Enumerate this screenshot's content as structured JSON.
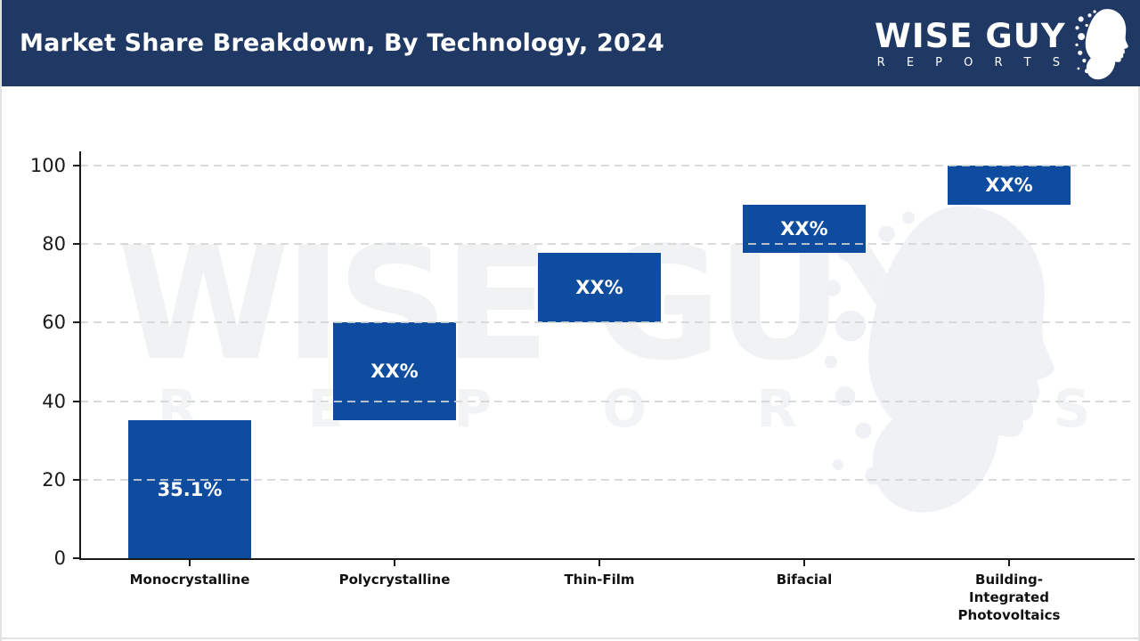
{
  "header": {
    "title": "Market Share Breakdown, By Technology, 2024",
    "background_color": "#1f3864",
    "logo": {
      "line1": "WISE GUY",
      "line2": "R E P O R T S"
    }
  },
  "watermark": {
    "line1": "WISE GUY",
    "line2": "R E P O R T S"
  },
  "chart_data": {
    "type": "bar",
    "subtype": "waterfall",
    "title": "Market Share Breakdown, By Technology, 2024",
    "categories": [
      "Monocrystalline",
      "Polycrystalline",
      "Thin-Film",
      "Bifacial",
      "Building-Integrated Photovoltaics"
    ],
    "segments": [
      {
        "category": "Monocrystalline",
        "start": 0,
        "end": 35.1,
        "label": "35.1%"
      },
      {
        "category": "Polycrystalline",
        "start": 35.1,
        "end": 60.2,
        "label": "XX%"
      },
      {
        "category": "Thin-Film",
        "start": 60.2,
        "end": 77.7,
        "label": "XX%"
      },
      {
        "category": "Bifacial",
        "start": 77.7,
        "end": 90.0,
        "label": "XX%"
      },
      {
        "category": "Building-Integrated Photovoltaics",
        "start": 90.0,
        "end": 100.0,
        "label": "XX%"
      }
    ],
    "ylim": [
      0,
      100
    ],
    "yticks": [
      0,
      20,
      40,
      60,
      80,
      100
    ],
    "xlabel": "",
    "ylabel": "",
    "grid": "horizontal-dashed",
    "bar_color": "#0d4c9e",
    "bar_label_color": "#ffffff",
    "axis_color": "#1a1a1a",
    "gridline_color": "#d4d4d4"
  }
}
